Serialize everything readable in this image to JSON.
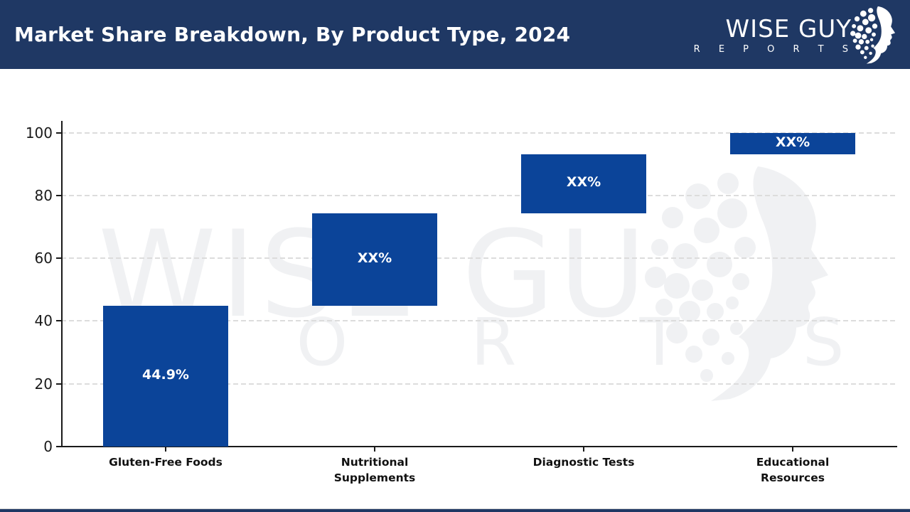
{
  "header": {
    "title": "Market Share Breakdown, By Product Type, 2024",
    "logo_line1": "WISE GUY",
    "logo_line2": "R E P O R T S"
  },
  "watermark": {
    "line1": "WISE GU",
    "line2": "P O R T S"
  },
  "colors": {
    "header_bg": "#1F3864",
    "footer_bg": "#1F3864",
    "bar": "#0B4499",
    "bar_label": "#FFFFFF",
    "grid": "#DCDCDC",
    "axis": "#1A1A1A",
    "watermark": "#F0F1F3"
  },
  "chart_data": {
    "type": "bar",
    "subtype": "waterfall",
    "title": "Market Share Breakdown, By Product Type, 2024",
    "categories": [
      "Gluten-Free Foods",
      "Nutritional Supplements",
      "Diagnostic Tests",
      "Educational Resources"
    ],
    "category_label_lines": [
      [
        "Gluten-Free Foods"
      ],
      [
        "Nutritional",
        "Supplements"
      ],
      [
        "Diagnostic Tests"
      ],
      [
        "Educational",
        "Resources"
      ]
    ],
    "bar_starts": [
      0,
      44.9,
      74.4,
      93.2
    ],
    "bar_values": [
      44.9,
      29.5,
      18.8,
      6.8
    ],
    "bar_labels": [
      "44.9%",
      "XX%",
      "XX%",
      "XX%"
    ],
    "xlabel": "",
    "ylabel": "",
    "ylim": [
      0,
      100
    ],
    "yticks": [
      0,
      20,
      40,
      60,
      80,
      100
    ],
    "grid": "horizontal-dashed",
    "legend": "none"
  }
}
